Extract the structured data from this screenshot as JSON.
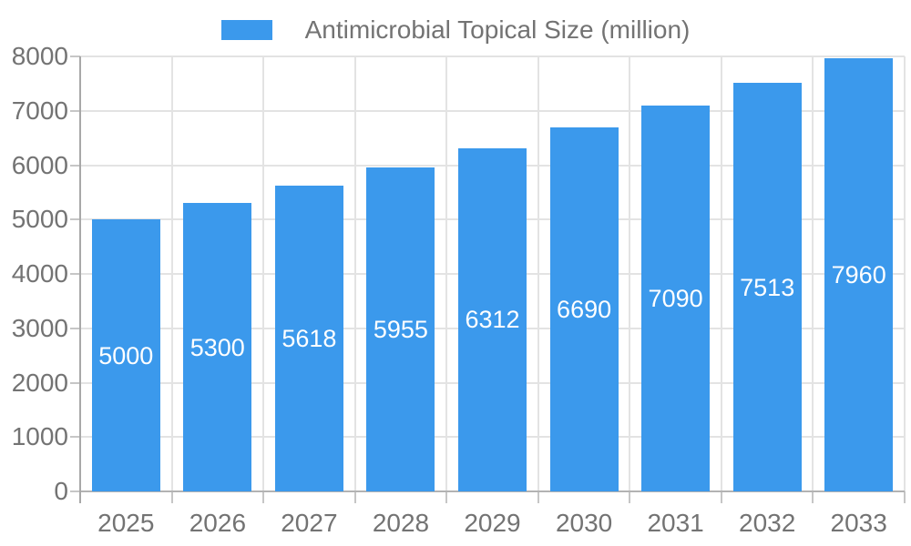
{
  "legend": {
    "label": "Antimicrobial Topical Size (million)"
  },
  "chart_data": {
    "type": "bar",
    "title": "Antimicrobial Topical Size (million)",
    "categories": [
      "2025",
      "2026",
      "2027",
      "2028",
      "2029",
      "2030",
      "2031",
      "2032",
      "2033"
    ],
    "values": [
      5000,
      5300,
      5618,
      5955,
      6312,
      6690,
      7090,
      7513,
      7960
    ],
    "bar_labels": [
      "5000",
      "5300",
      "5618",
      "5955",
      "6312",
      "6690",
      "7090",
      "7513",
      "7960"
    ],
    "xlabel": "",
    "ylabel": "",
    "ylim": [
      0,
      8000
    ],
    "ytick_step": 1000,
    "yticks": [
      "0",
      "1000",
      "2000",
      "3000",
      "4000",
      "5000",
      "6000",
      "7000",
      "8000"
    ],
    "grid": true,
    "legend_position": "top",
    "colors": {
      "bar": "#3B99EC",
      "text": "#737373",
      "bar_label": "#ffffff",
      "grid": "#e3e3e3",
      "axis": "#a8a8a8",
      "zero_line": "#b3b3b3",
      "tick": "#c6c6c6"
    }
  }
}
